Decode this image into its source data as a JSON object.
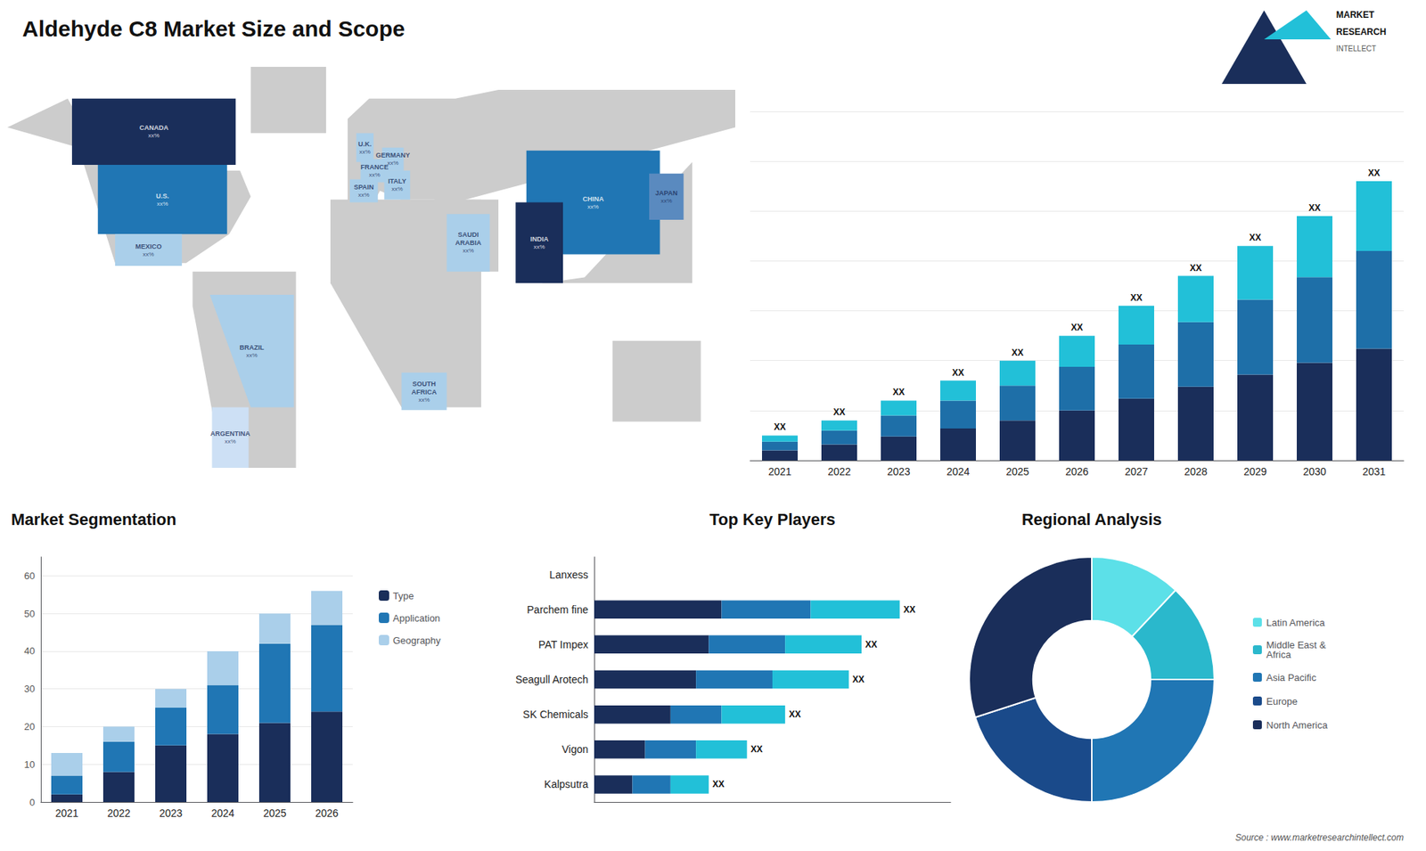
{
  "title": "Aldehyde C8 Market Size and Scope",
  "logo": [
    "MARKET",
    "RESEARCH",
    "INTELLECT"
  ],
  "source": "Source : www.marketresearchintellect.com",
  "chart_data": [
    {
      "type": "map",
      "color": "#cccccc",
      "tick_labels": false,
      "grid": false,
      "land": [
        [
          [
            -168,
            62
          ],
          [
            -140,
            72
          ],
          [
            -125,
            52
          ],
          [
            -90,
            47
          ],
          [
            -60,
            47
          ],
          [
            -55,
            38
          ],
          [
            -65,
            25
          ],
          [
            -85,
            15
          ],
          [
            -100,
            15
          ],
          [
            -118,
            15
          ],
          [
            -135,
            55
          ],
          [
            -168,
            62
          ]
        ],
        [
          [
            -55,
            60
          ],
          [
            -20,
            60
          ],
          [
            -20,
            83
          ],
          [
            -55,
            83
          ]
        ],
        [
          [
            -82,
            12
          ],
          [
            -34,
            12
          ],
          [
            -34,
            -56
          ],
          [
            -68,
            -56
          ],
          [
            -82,
            0
          ]
        ],
        [
          [
            -10,
            36
          ],
          [
            2,
            36
          ],
          [
            5,
            40
          ],
          [
            15,
            37
          ],
          [
            30,
            37
          ],
          [
            40,
            36
          ],
          [
            60,
            40
          ],
          [
            170,
            62
          ],
          [
            170,
            75
          ],
          [
            60,
            75
          ],
          [
            40,
            72
          ],
          [
            20,
            72
          ],
          [
            0,
            72
          ],
          [
            -10,
            65
          ],
          [
            -10,
            36
          ]
        ],
        [
          [
            -18,
            37
          ],
          [
            52,
            37
          ],
          [
            52,
            -35
          ],
          [
            35,
            -35
          ],
          [
            15,
            -35
          ],
          [
            -18,
            8
          ],
          [
            -18,
            37
          ]
        ],
        [
          [
            36,
            12
          ],
          [
            60,
            12
          ],
          [
            60,
            37
          ],
          [
            36,
            37
          ]
        ],
        [
          [
            60,
            8
          ],
          [
            150,
            8
          ],
          [
            150,
            50
          ],
          [
            100,
            10
          ],
          [
            80,
            8
          ],
          [
            60,
            8
          ]
        ],
        [
          [
            113,
            -12
          ],
          [
            154,
            -12
          ],
          [
            154,
            -40
          ],
          [
            113,
            -40
          ]
        ]
      ],
      "regions": [
        {
          "name": "CANADA",
          "label": "xx%",
          "color": "#1a2e5a",
          "polygon": [
            [
              -138,
              49
            ],
            [
              -62,
              49
            ],
            [
              -62,
              72
            ],
            [
              -100,
              72
            ],
            [
              -138,
              72
            ]
          ]
        },
        {
          "name": "U.S.",
          "label": "xx%",
          "color": "#2076b4",
          "polygon": [
            [
              -126,
              25
            ],
            [
              -66,
              25
            ],
            [
              -66,
              49
            ],
            [
              -126,
              49
            ]
          ]
        },
        {
          "name": "MEXICO",
          "label": "xx%",
          "color": "#aacfea",
          "polygon": [
            [
              -118,
              14
            ],
            [
              -87,
              14
            ],
            [
              -87,
              25
            ],
            [
              -118,
              25
            ]
          ]
        },
        {
          "name": "BRAZIL",
          "label": "xx%",
          "color": "#aacfea",
          "polygon": [
            [
              -74,
              4
            ],
            [
              -35,
              4
            ],
            [
              -35,
              -35
            ],
            [
              -55,
              -35
            ],
            [
              -74,
              4
            ]
          ]
        },
        {
          "name": "ARGENTINA",
          "label": "xx%",
          "color": "#cde0f5",
          "polygon": [
            [
              -73,
              -35
            ],
            [
              -56,
              -35
            ],
            [
              -56,
              -56
            ],
            [
              -73,
              -56
            ]
          ]
        },
        {
          "name": "U.K.",
          "label": "xx%",
          "color": "#aacfea",
          "polygon": [
            [
              -6,
              50
            ],
            [
              2,
              50
            ],
            [
              2,
              60
            ],
            [
              -6,
              60
            ]
          ]
        },
        {
          "name": "FRANCE",
          "label": "xx%",
          "color": "#aacfea",
          "polygon": [
            [
              -4,
              43
            ],
            [
              9,
              43
            ],
            [
              9,
              51
            ],
            [
              -4,
              51
            ]
          ]
        },
        {
          "name": "SPAIN",
          "label": "xx%",
          "color": "#aacfea",
          "polygon": [
            [
              -9,
              36
            ],
            [
              4,
              36
            ],
            [
              4,
              44
            ],
            [
              -9,
              44
            ]
          ]
        },
        {
          "name": "GERMANY",
          "label": "xx%",
          "color": "#aacfea",
          "polygon": [
            [
              6,
              47
            ],
            [
              16,
              47
            ],
            [
              16,
              55
            ],
            [
              6,
              55
            ]
          ]
        },
        {
          "name": "ITALY",
          "label": "xx%",
          "color": "#aacfea",
          "polygon": [
            [
              7,
              37
            ],
            [
              19,
              37
            ],
            [
              19,
              47
            ],
            [
              7,
              47
            ]
          ]
        },
        {
          "name": "SAUDI\nARABIA",
          "label": "xx%",
          "color": "#aacfea",
          "polygon": [
            [
              36,
              12
            ],
            [
              56,
              12
            ],
            [
              56,
              32
            ],
            [
              36,
              32
            ]
          ]
        },
        {
          "name": "SOUTH\nAFRICA",
          "label": "xx%",
          "color": "#aacfea",
          "polygon": [
            [
              15,
              -23
            ],
            [
              36,
              -23
            ],
            [
              36,
              -36
            ],
            [
              15,
              -36
            ]
          ]
        },
        {
          "name": "CHINA",
          "label": "xx%",
          "color": "#2076b4",
          "polygon": [
            [
              73,
              18
            ],
            [
              135,
              18
            ],
            [
              135,
              54
            ],
            [
              73,
              54
            ]
          ]
        },
        {
          "name": "INDIA",
          "label": "xx%",
          "color": "#1a2e5a",
          "polygon": [
            [
              68,
              8
            ],
            [
              90,
              8
            ],
            [
              90,
              36
            ],
            [
              68,
              36
            ]
          ]
        },
        {
          "name": "JAPAN",
          "label": "xx%",
          "color": "#5a8abf",
          "polygon": [
            [
              130,
              30
            ],
            [
              146,
              30
            ],
            [
              146,
              46
            ],
            [
              130,
              46
            ]
          ]
        }
      ]
    },
    {
      "type": "bar",
      "stacked": true,
      "categories": [
        "2021",
        "2022",
        "2023",
        "2024",
        "2025",
        "2026",
        "2027",
        "2028",
        "2029",
        "2030",
        "2031"
      ],
      "series": [
        {
          "color": "#1a2e5a",
          "values": [
            2,
            3.2,
            4.8,
            6.4,
            8,
            10,
            12.4,
            14.8,
            17.2,
            19.6,
            22.4
          ]
        },
        {
          "color": "#1e6fa8",
          "values": [
            1.75,
            2.8,
            4.2,
            5.6,
            7,
            8.75,
            10.85,
            12.95,
            15.05,
            17.15,
            19.6
          ]
        },
        {
          "color": "#22c0d8",
          "values": [
            1.25,
            2,
            3,
            4,
            5,
            6.25,
            7.75,
            9.25,
            10.75,
            12.25,
            14
          ],
          "value_labels": [
            "XX",
            "XX",
            "XX",
            "XX",
            "XX",
            "XX",
            "XX",
            "XX",
            "XX",
            "XX",
            "XX"
          ]
        }
      ],
      "data_labels": true,
      "ylim": [
        0,
        70
      ],
      "yticks": [
        0,
        10,
        20,
        30,
        40,
        50,
        60,
        70
      ],
      "tick_labels": "x",
      "grid": true
    },
    {
      "type": "bar",
      "title": "Market Segmentation",
      "stacked": true,
      "categories": [
        "2021",
        "2022",
        "2023",
        "2024",
        "2025",
        "2026"
      ],
      "series": [
        {
          "name": "Type",
          "color": "#1a2e5a",
          "values": [
            2,
            8,
            15,
            18,
            21,
            24
          ]
        },
        {
          "name": "Application",
          "color": "#2076b4",
          "values": [
            5,
            8,
            10,
            13,
            21,
            23
          ]
        },
        {
          "name": "Geography",
          "color": "#aacfea",
          "values": [
            6,
            4,
            5,
            9,
            8,
            9
          ]
        }
      ],
      "ylim": [
        0,
        65
      ],
      "yticks": [
        0,
        10,
        20,
        30,
        40,
        50,
        60
      ],
      "grid": true,
      "legend": "right"
    },
    {
      "type": "bar",
      "title": "Top Key Players",
      "orientation": "horizontal",
      "stacked": true,
      "categories": [
        "Lanxess",
        "Parchem fine",
        "PAT Impex",
        "Seagull Arotech",
        "SK Chemicals",
        "Vigon",
        "Kalpsutra"
      ],
      "series": [
        {
          "color": "#1a2e5a",
          "values": [
            0,
            10,
            9,
            8,
            6,
            4,
            3
          ]
        },
        {
          "color": "#2076b4",
          "values": [
            0,
            7,
            6,
            6,
            4,
            4,
            3
          ]
        },
        {
          "color": "#22c0d8",
          "values": [
            0,
            7,
            6,
            6,
            5,
            4,
            3
          ],
          "value_labels": [
            null,
            "XX",
            "XX",
            "XX",
            "XX",
            "XX",
            "XX"
          ]
        }
      ],
      "data_labels": true,
      "xlim": [
        0,
        28
      ],
      "xticks": [
        0,
        5,
        10,
        15,
        20,
        25
      ],
      "tick_labels": "y",
      "grid": false
    },
    {
      "type": "donut",
      "title": "Regional Analysis",
      "categories": [
        "Latin America",
        "Middle East &\nAfrica",
        "Asia Pacific",
        "Europe",
        "North America"
      ],
      "values": [
        12,
        13,
        25,
        20,
        30
      ],
      "colors": [
        "#5ce0e8",
        "#2ab8cc",
        "#2076b4",
        "#1a4a8a",
        "#1a2e5a"
      ],
      "legend": "right"
    }
  ]
}
